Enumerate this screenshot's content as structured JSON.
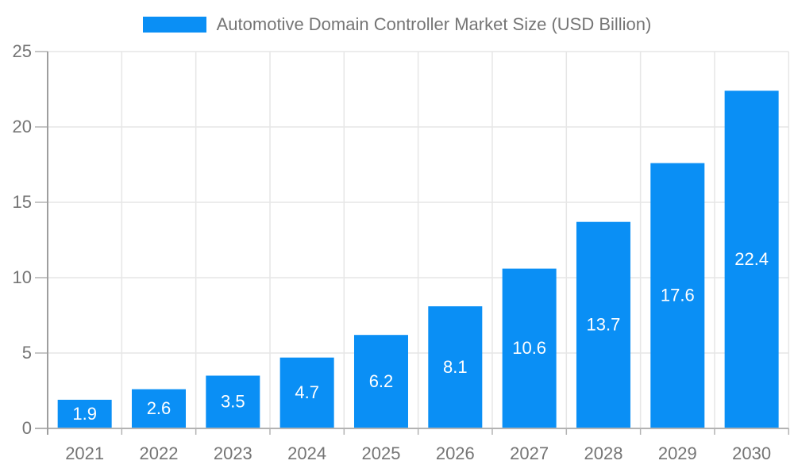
{
  "legend": {
    "label": "Automotive Domain Controller Market Size (USD Billion)"
  },
  "chart_data": {
    "type": "bar",
    "title": "Automotive Domain Controller Market Size (USD Billion)",
    "categories": [
      "2021",
      "2022",
      "2023",
      "2024",
      "2025",
      "2026",
      "2027",
      "2028",
      "2029",
      "2030"
    ],
    "values": [
      1.9,
      2.6,
      3.5,
      4.7,
      6.2,
      8.1,
      10.6,
      13.7,
      17.6,
      22.4
    ],
    "value_labels": [
      "1.9",
      "2.6",
      "3.5",
      "4.7",
      "6.2",
      "8.1",
      "10.6",
      "13.7",
      "17.6",
      "22.4"
    ],
    "xlabel": "",
    "ylabel": "",
    "ylim": [
      0,
      25
    ],
    "yticks": [
      0,
      5,
      10,
      15,
      20,
      25
    ],
    "ytick_labels": [
      "0",
      "5",
      "10",
      "15",
      "20",
      "25"
    ],
    "grid": true,
    "legend_position": "top",
    "colors": {
      "bar": "#0a8ff5",
      "axis_text": "#757575",
      "grid_line": "#e6e6e6",
      "tick_line": "#b3b3b3",
      "y_axis_line": "#9e9e9e",
      "x_axis_line": "#b3b3b3",
      "value_label": "#ffffff",
      "background": "#ffffff"
    }
  }
}
